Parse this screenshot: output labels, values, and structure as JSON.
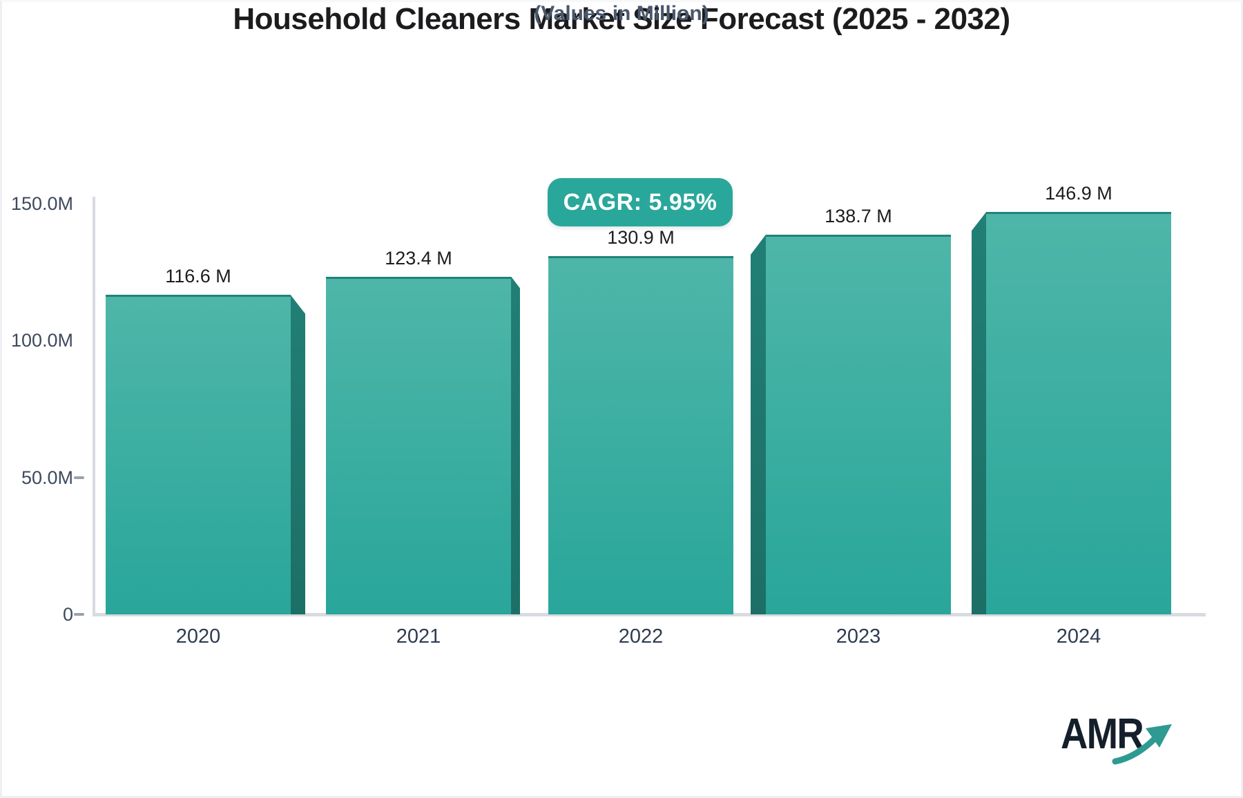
{
  "title": "Household Cleaners Market Size Forecast (2025 - 2032)",
  "subtitle": "(Values in Million)",
  "badge": {
    "label": "CAGR: 5.95%"
  },
  "logo": {
    "text": "AMR"
  },
  "chart_data": {
    "type": "bar",
    "title": "Household Cleaners Market Size Forecast (2025 - 2032)",
    "subtitle": "(Values in Million)",
    "unit": "Million",
    "categories": [
      "2020",
      "2021",
      "2022",
      "2023",
      "2024"
    ],
    "values": [
      116.6,
      123.4,
      130.9,
      138.7,
      146.9
    ],
    "value_labels": [
      "116.6 M",
      "123.4 M",
      "130.9 M",
      "138.7 M",
      "146.9 M"
    ],
    "cagr": "5.95%",
    "xlabel": "",
    "ylabel": "",
    "ylim": [
      0,
      150
    ],
    "y_ticks": [
      {
        "label": "150.0M",
        "value": 150,
        "dash": false
      },
      {
        "label": "100.0M",
        "value": 100,
        "dash": false
      },
      {
        "label": "50.0M",
        "value": 50,
        "dash": true
      },
      {
        "label": "0",
        "value": 0,
        "dash": true
      }
    ],
    "grid": false,
    "legend": false
  },
  "colors": {
    "bar_gradient_top": "#4EB6A9",
    "bar_gradient_bottom": "#29A69A",
    "bar_3d_side": "#1F786E",
    "bar_top_edge": "#1F8379",
    "badge_background": "#2AA79B",
    "badge_text": "#FFFFFF",
    "axis_line": "#D8DBE0",
    "title_text": "#1C1C1E",
    "subtitle_text": "#4A586C",
    "logo_text": "#151F2B",
    "logo_arrow": "#2E9A91"
  }
}
